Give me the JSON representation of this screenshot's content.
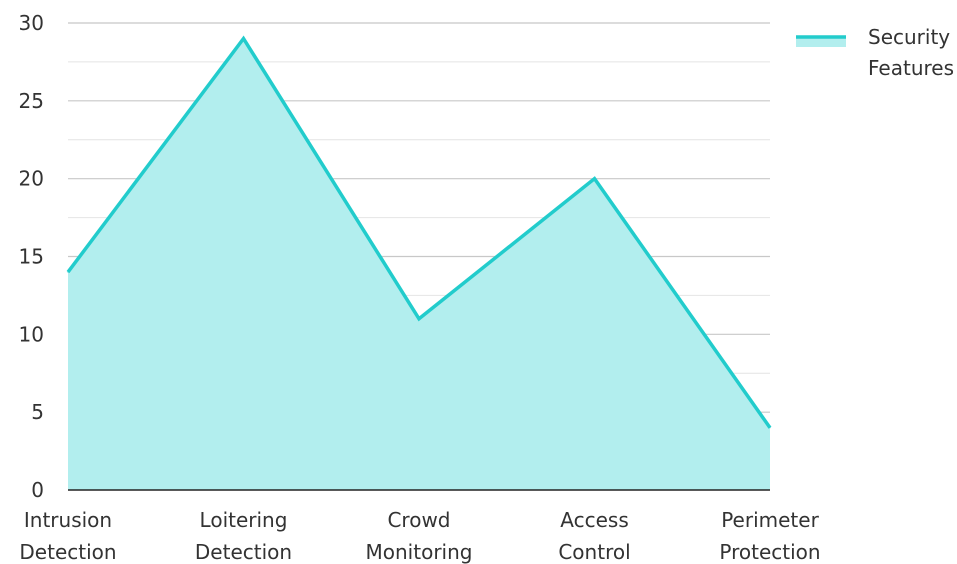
{
  "chart_data": {
    "type": "area",
    "categories": [
      "Intrusion Detection",
      "Loitering Detection",
      "Crowd Monitoring",
      "Access Control",
      "Perimeter Protection"
    ],
    "category_lines": [
      [
        "Intrusion",
        "Detection"
      ],
      [
        "Loitering",
        "Detection"
      ],
      [
        "Crowd",
        "Monitoring"
      ],
      [
        "Access",
        "Control"
      ],
      [
        "Perimeter",
        "Protection"
      ]
    ],
    "series": [
      {
        "name": "Security Features",
        "name_lines": [
          "Security",
          "Features"
        ],
        "values": [
          14,
          29,
          11,
          20,
          4
        ],
        "line_color": "#22cccc",
        "fill_color": "#b2eeee"
      }
    ],
    "ylim": [
      0,
      30
    ],
    "yticks": [
      0,
      5,
      10,
      15,
      20,
      25,
      30
    ],
    "title": "",
    "xlabel": "",
    "ylabel": "",
    "grid": true,
    "legend_position": "top-right"
  }
}
